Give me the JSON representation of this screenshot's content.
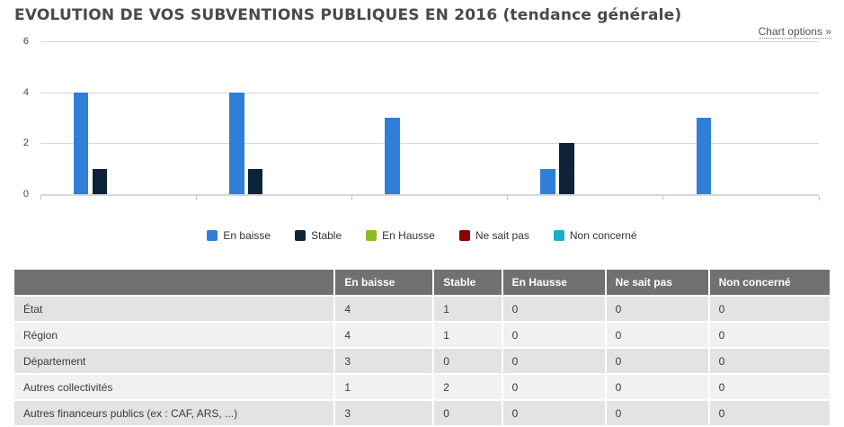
{
  "header": {
    "title": "EVOLUTION DE VOS SUBVENTIONS PUBLIQUES EN 2016 (tendance générale)",
    "chart_options_label": "Chart options »"
  },
  "chart_data": {
    "type": "bar",
    "title": "EVOLUTION DE VOS SUBVENTIONS PUBLIQUES EN 2016 (tendance générale)",
    "categories": [
      "État",
      "Région",
      "Département",
      "Autres collectivités",
      "Autres financeurs publics (ex : CAF, ARS, ...)"
    ],
    "series": [
      {
        "name": "En baisse",
        "color": "#2f7ed8",
        "values": [
          4,
          4,
          3,
          1,
          3
        ]
      },
      {
        "name": "Stable",
        "color": "#0d233a",
        "values": [
          1,
          1,
          0,
          2,
          0
        ]
      },
      {
        "name": "En Hausse",
        "color": "#8bbc21",
        "values": [
          0,
          0,
          0,
          0,
          0
        ]
      },
      {
        "name": "Ne sait pas",
        "color": "#910000",
        "values": [
          0,
          0,
          0,
          0,
          0
        ]
      },
      {
        "name": "Non concerné",
        "color": "#1aadce",
        "values": [
          0,
          0,
          0,
          0,
          0
        ]
      }
    ],
    "ylim": [
      0,
      6
    ],
    "yticks": [
      0,
      2,
      4,
      6
    ],
    "grid": true,
    "legend_position": "bottom",
    "x_axis_labels_visible": false
  },
  "legend": {
    "items": [
      "En baisse",
      "Stable",
      "En Hausse",
      "Ne sait pas",
      "Non concerné"
    ]
  },
  "table": {
    "headers": [
      "",
      "En baisse",
      "Stable",
      "En Hausse",
      "Ne sait pas",
      "Non concerné"
    ],
    "rows": [
      {
        "label": "État",
        "values": [
          "4",
          "1",
          "0",
          "0",
          "0"
        ]
      },
      {
        "label": "Région",
        "values": [
          "4",
          "1",
          "0",
          "0",
          "0"
        ]
      },
      {
        "label": "Département",
        "values": [
          "3",
          "0",
          "0",
          "0",
          "0"
        ]
      },
      {
        "label": "Autres collectivités",
        "values": [
          "1",
          "2",
          "0",
          "0",
          "0"
        ]
      },
      {
        "label": "Autres financeurs publics (ex : CAF, ARS, ...)",
        "values": [
          "3",
          "0",
          "0",
          "0",
          "0"
        ]
      }
    ]
  },
  "colors": {
    "grid": "#d6d6d6",
    "axis_line": "#d7d7d7",
    "axis_tick": "#b9c7d6",
    "table_header_bg": "#717171",
    "row_dark": "#e3e3e3",
    "row_light": "#f1f1f1",
    "title_text": "#4a4a4a"
  }
}
